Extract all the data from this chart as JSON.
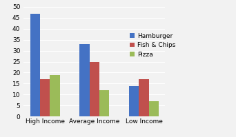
{
  "categories": [
    "High Income",
    "Average Income",
    "Low Income"
  ],
  "series": [
    {
      "label": "Hamburger",
      "color": "#4472C4",
      "values": [
        47,
        33,
        14
      ]
    },
    {
      "label": "Fish & Chips",
      "color": "#C0504D",
      "values": [
        17,
        25,
        17
      ]
    },
    {
      "label": "Pizza",
      "color": "#9BBB59",
      "values": [
        19,
        12,
        7
      ]
    }
  ],
  "ylim": [
    0,
    50
  ],
  "yticks": [
    0,
    5,
    10,
    15,
    20,
    25,
    30,
    35,
    40,
    45,
    50
  ],
  "background_color": "#F2F2F2",
  "plot_bg_color": "#F2F2F2",
  "grid_color": "#FFFFFF",
  "legend_fontsize": 6.5,
  "tick_fontsize": 6.5,
  "bar_width": 0.2
}
